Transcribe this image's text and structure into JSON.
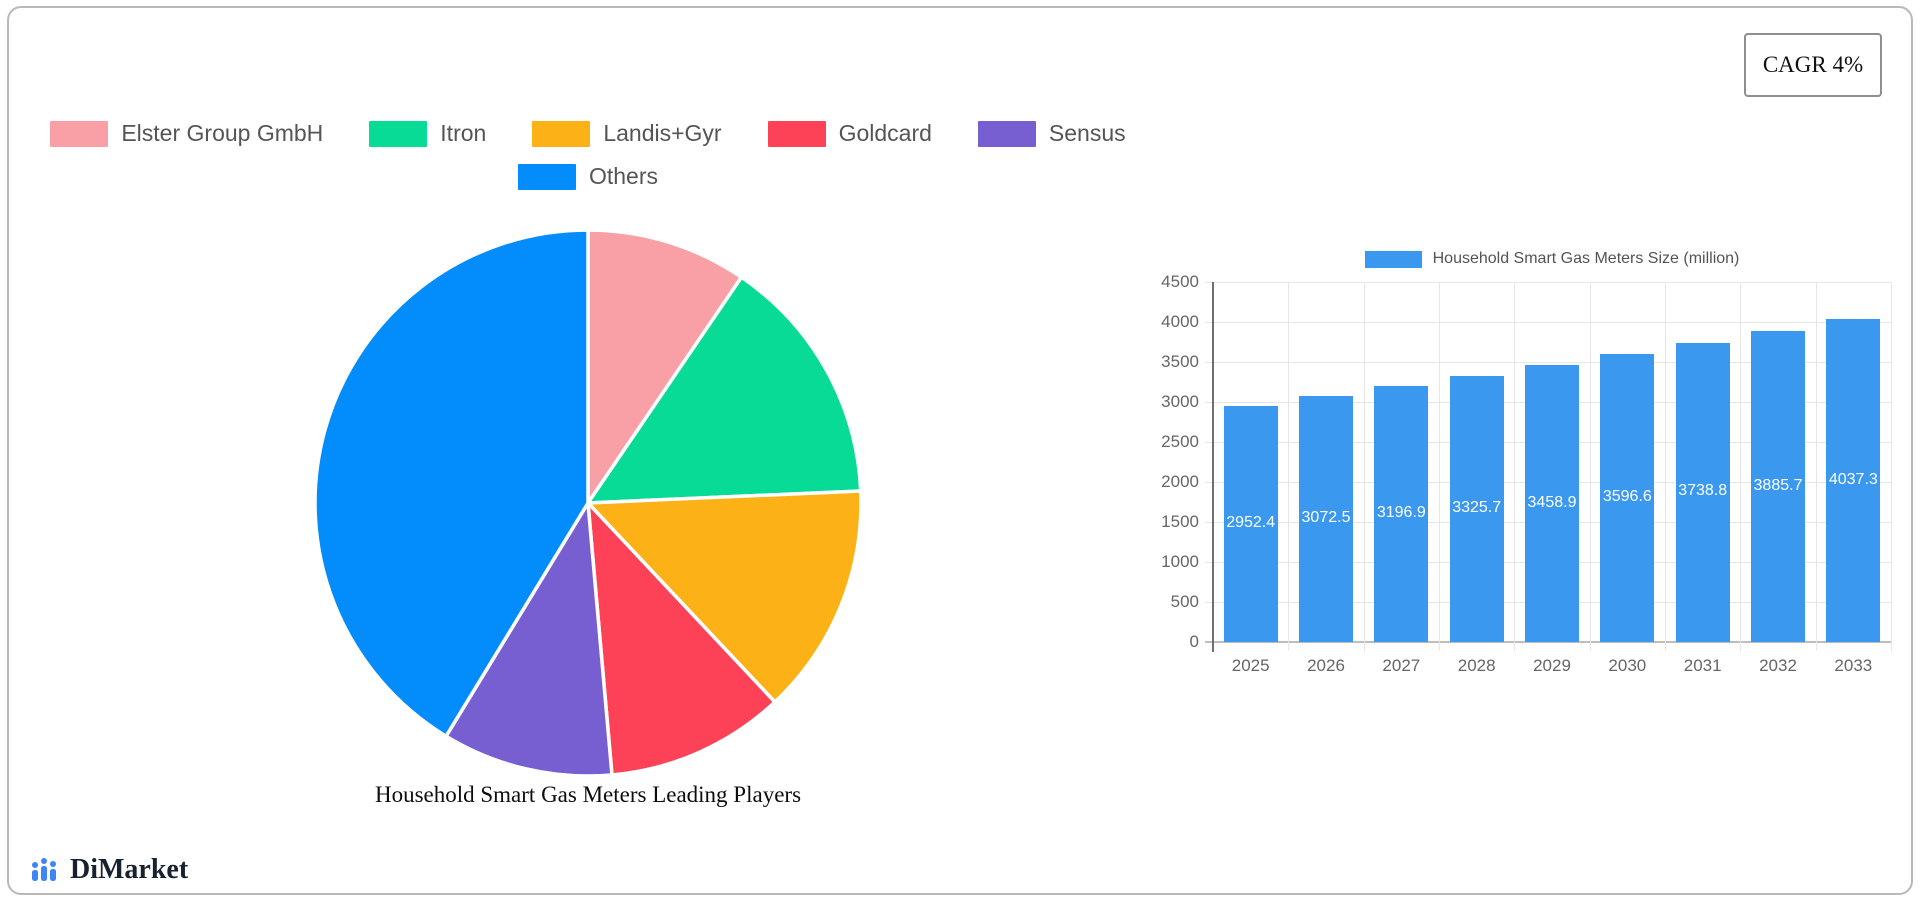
{
  "badge": {
    "label": "CAGR 4%"
  },
  "brand": {
    "name": "DiMarket",
    "icon": "bar-chart-logo-icon",
    "icon_color": "#3e86f2"
  },
  "pie_section": {
    "title": "Household Smart Gas Meters Leading Players"
  },
  "bar_section": {
    "legend_label": "Household Smart Gas Meters Size (million)"
  },
  "chart_data": [
    {
      "type": "pie",
      "title": "Household Smart Gas Meters Leading Players",
      "labels": [
        "Elster Group GmbH",
        "Itron",
        "Landis+Gyr",
        "Goldcard",
        "Sensus",
        "Others"
      ],
      "values": [
        9.5,
        14.8,
        13.7,
        10.6,
        10.1,
        41.3
      ],
      "unit": "market share % (estimated from slice angles)",
      "colors": [
        "#F8A0A6",
        "#07DB95",
        "#FCB117",
        "#FD4258",
        "#785FD1",
        "#028CFC"
      ],
      "start_angle_deg": 0,
      "direction": "clockwise",
      "legend_position": "top",
      "slice_border_color": "#ffffff"
    },
    {
      "type": "bar",
      "series": [
        {
          "name": "Household Smart Gas Meters Size (million)",
          "values": [
            2952.4,
            3072.5,
            3196.9,
            3325.7,
            3458.9,
            3596.6,
            3738.8,
            3885.7,
            4037.3
          ]
        }
      ],
      "categories": [
        "2025",
        "2026",
        "2027",
        "2028",
        "2029",
        "2030",
        "2031",
        "2032",
        "2033"
      ],
      "ylabel": "",
      "xlabel": "",
      "ylim": [
        0,
        4500
      ],
      "ytick_step": 500,
      "bar_color": "#3A99EE",
      "value_label_color": "#ffffff",
      "grid": true,
      "legend_position": "top"
    }
  ]
}
